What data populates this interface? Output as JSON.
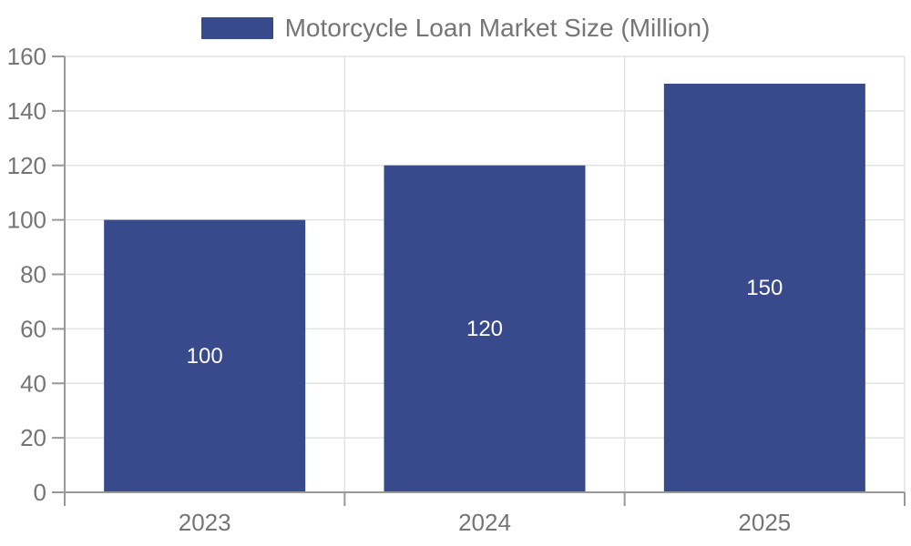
{
  "chart_data": {
    "type": "bar",
    "title": "Motorcycle Loan Market Size (Million)",
    "legend": {
      "position": "top",
      "entries": [
        "Motorcycle Loan Market Size (Million)"
      ]
    },
    "categories": [
      "2023",
      "2024",
      "2025"
    ],
    "values": [
      100,
      120,
      150
    ],
    "xlabel": "",
    "ylabel": "",
    "ylim": [
      0,
      160
    ],
    "ytick_interval": 20,
    "yticks": [
      0,
      20,
      40,
      60,
      80,
      100,
      120,
      140,
      160
    ],
    "grid": true,
    "colors": {
      "bar": "#394a8c",
      "bar_label": "#ffffff",
      "text": "#757575",
      "axis_line": "#999999",
      "grid_line": "#e3e3e3",
      "background": "#ffffff"
    }
  }
}
